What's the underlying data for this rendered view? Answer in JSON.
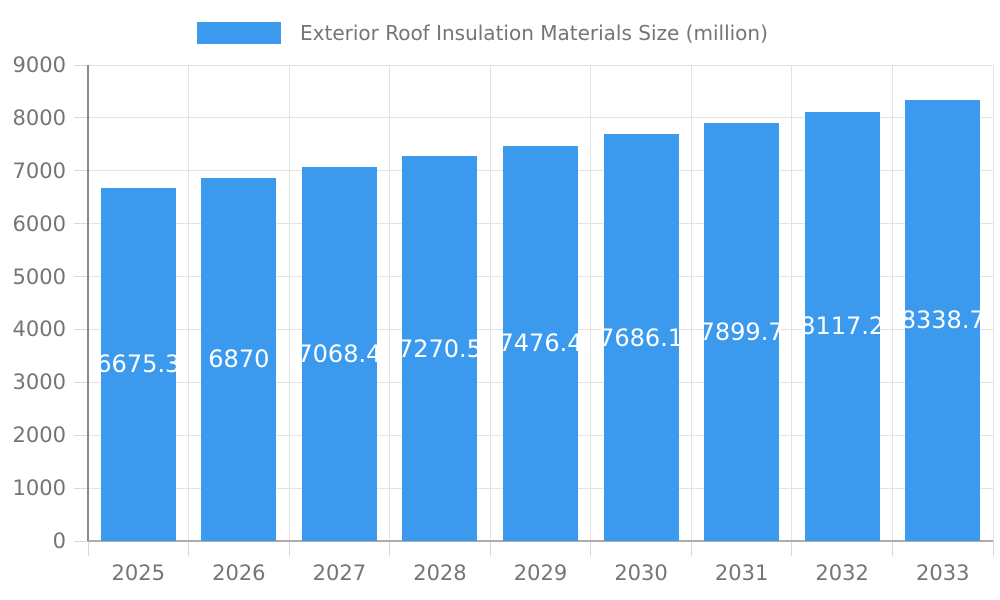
{
  "legend": {
    "label": "Exterior Roof Insulation Materials Size (million)"
  },
  "colors": {
    "bar": "#3B99EE",
    "axis_label_text": "#757575",
    "value_label_text": "#FFFFFF",
    "grid_line": "#E3E3E3",
    "tick_line": "#D9D9D9",
    "y_axis_line": "#898989",
    "x_axis_line": "#ACACAC",
    "background": "#FFFFFF"
  },
  "chart_data": {
    "type": "bar",
    "title": "Exterior Roof Insulation Materials Size (million)",
    "categories": [
      "2025",
      "2026",
      "2027",
      "2028",
      "2029",
      "2030",
      "2031",
      "2032",
      "2033"
    ],
    "values": [
      6675.3,
      6870,
      7068.4,
      7270.5,
      7476.4,
      7686.1,
      7899.7,
      8117.2,
      8338.7
    ],
    "value_labels": [
      "6675.3",
      "6870",
      "7068.4",
      "7270.5",
      "7476.4",
      "7686.1",
      "7899.7",
      "8117.2",
      "8338.7"
    ],
    "xlabel": "",
    "ylabel": "",
    "ylim": [
      0,
      9000
    ],
    "ytick_interval": 1000,
    "ytick_labels": [
      "0",
      "1000",
      "2000",
      "3000",
      "4000",
      "5000",
      "6000",
      "7000",
      "8000",
      "9000"
    ],
    "grid": true,
    "legend_position": "top",
    "value_label_position": "inside-center"
  }
}
